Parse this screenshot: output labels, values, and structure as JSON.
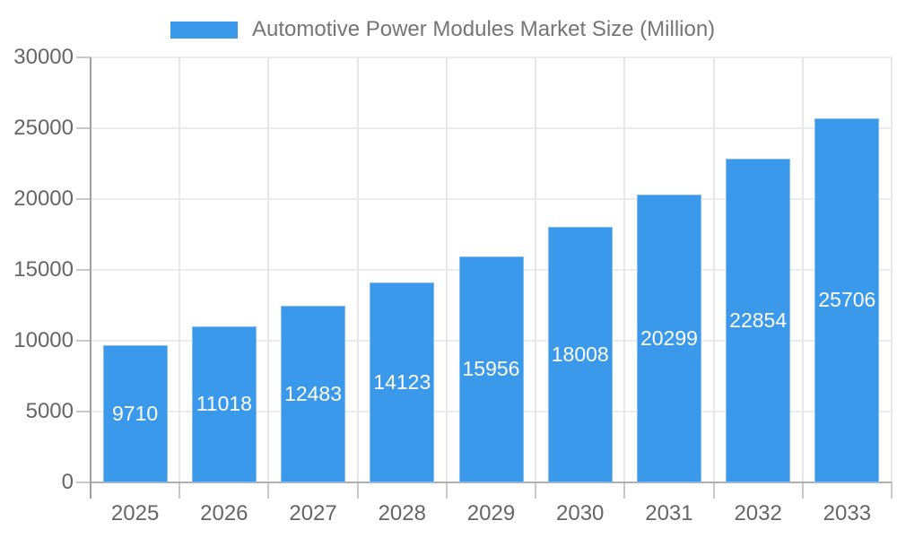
{
  "legend": {
    "label": "Automotive Power Modules Market Size (Million)",
    "swatch_color": "#3B99EC"
  },
  "colors": {
    "bar": "#3B99EC",
    "bar_border": "#8CC0F2",
    "bar_label": "#ffffff",
    "axis_text": "#666666",
    "legend_text": "#757575",
    "grid": "#ececec",
    "tick": "#c9c9c9",
    "y_axis_line": "#a0a0a0",
    "x_axis_line": "#b0b0b0",
    "background": "#ffffff"
  },
  "chart_data": {
    "type": "bar",
    "title": "Automotive Power Modules Market Size (Million)",
    "categories": [
      "2025",
      "2026",
      "2027",
      "2028",
      "2029",
      "2030",
      "2031",
      "2032",
      "2033"
    ],
    "values": [
      9710,
      11018,
      12483,
      14123,
      15956,
      18008,
      20299,
      22854,
      25706
    ],
    "series_name": "Automotive Power Modules Market Size (Million)",
    "xlabel": "",
    "ylabel": "",
    "ylim": [
      0,
      30000
    ],
    "ytick_step": 5000,
    "ytick_labels": [
      "0",
      "5000",
      "10000",
      "15000",
      "20000",
      "25000",
      "30000"
    ],
    "value_labels_shown": true,
    "value_label_position": "center",
    "legend_position": "top",
    "grid": true
  }
}
